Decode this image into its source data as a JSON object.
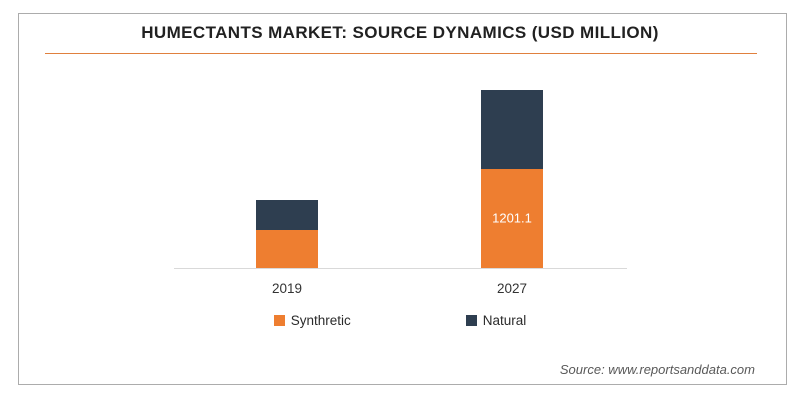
{
  "header": {
    "title": "HUMECTANTS MARKET: SOURCE DYNAMICS (USD MILLION)"
  },
  "footer": {
    "source": "Source: www.reportsanddata.com"
  },
  "colors": {
    "synthetic": "#ee7e30",
    "natural": "#2e3e50",
    "title_underline": "#e0803e",
    "axis_line": "#d9d9d9",
    "card_border": "#acacac"
  },
  "chart_data": {
    "type": "bar",
    "stacked": true,
    "title": "HUMECTANTS MARKET: SOURCE DYNAMICS (USD MILLION)",
    "categories": [
      "2019",
      "2027"
    ],
    "series": [
      {
        "name": "Synthretic",
        "color": "#ee7e30",
        "values": [
          460,
          1201.1
        ]
      },
      {
        "name": "Natural",
        "color": "#2e3e50",
        "values": [
          360,
          950
        ]
      }
    ],
    "data_labels": {
      "synthetic_2027": "1201.1"
    },
    "xlabel": "",
    "ylabel": "",
    "ylim": [
      0,
      2225
    ],
    "grid": false,
    "legend_position": "bottom"
  }
}
